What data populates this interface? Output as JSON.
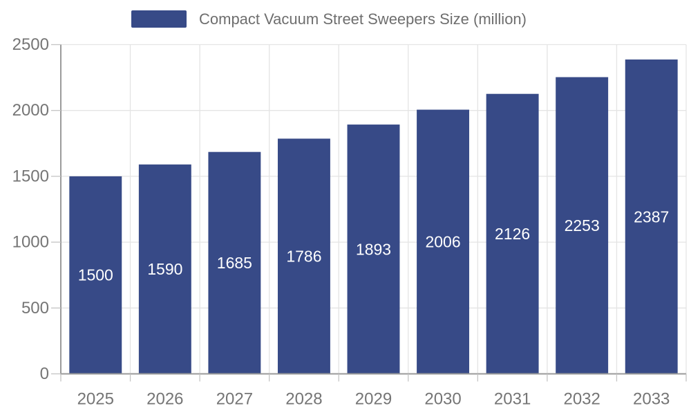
{
  "legend": {
    "label": "Compact Vacuum Street Sweepers Size (million)"
  },
  "chart_data": {
    "type": "bar",
    "title": "Compact Vacuum Street Sweepers Size (million)",
    "categories": [
      "2025",
      "2026",
      "2027",
      "2028",
      "2029",
      "2030",
      "2031",
      "2032",
      "2033"
    ],
    "series": [
      {
        "name": "Compact Vacuum Street Sweepers Size (million)",
        "values": [
          1500,
          1590,
          1685,
          1786,
          1893,
          2006,
          2126,
          2253,
          2387
        ]
      }
    ],
    "xlabel": "",
    "ylabel": "",
    "ylim": [
      0,
      2500
    ],
    "yticks": [
      0,
      500,
      1000,
      1500,
      2000,
      2500
    ],
    "grid": true,
    "legend_position": "top",
    "value_labels": "inside-white",
    "colors": {
      "bar": "#374a87",
      "value_label": "#ffffff",
      "tick_label": "#757575",
      "legend_text": "#6e6e6e",
      "gridline": "#e4e4e4",
      "axis_line": "#9a9a9a",
      "tick_mark": "#c4c4c4",
      "background": "#ffffff"
    }
  }
}
